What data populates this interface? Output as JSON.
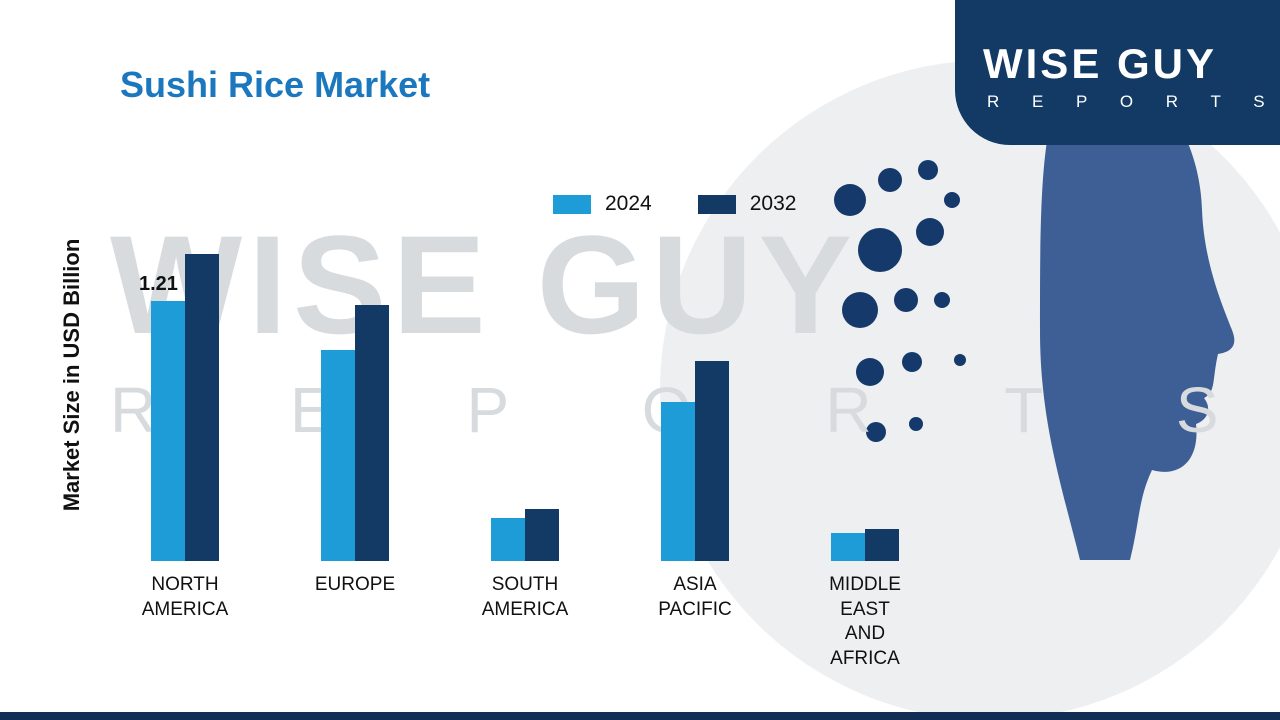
{
  "page": {
    "title": "Sushi Rice Market"
  },
  "logo": {
    "line1": "WISE GUY",
    "line2": "R E P O R T S"
  },
  "watermark": {
    "line1": "WISE GUY",
    "line2": "R E P O R T S"
  },
  "colors": {
    "title_blue": "#1b77be",
    "series_2024": "#1e9cd7",
    "series_2032": "#123a64",
    "footer_navy": "#112f54"
  },
  "chart_data": {
    "type": "bar",
    "title": "Sushi Rice Market",
    "ylabel": "Market Size in USD Billion",
    "xlabel": "",
    "grid": false,
    "legend_position": "top",
    "ylim": [
      0,
      1.5
    ],
    "categories": [
      "NORTH\nAMERICA",
      "EUROPE",
      "SOUTH\nAMERICA",
      "ASIA\nPACIFIC",
      "MIDDLE\nEAST\nAND\nAFRICA"
    ],
    "series": [
      {
        "name": "2024",
        "color": "#1e9cd7",
        "values": [
          1.21,
          0.98,
          0.2,
          0.74,
          0.13
        ]
      },
      {
        "name": "2032",
        "color": "#123a64",
        "values": [
          1.43,
          1.19,
          0.24,
          0.93,
          0.15
        ]
      }
    ],
    "bar_label": {
      "text": "1.21",
      "category_index": 0,
      "series_index": 0
    }
  }
}
